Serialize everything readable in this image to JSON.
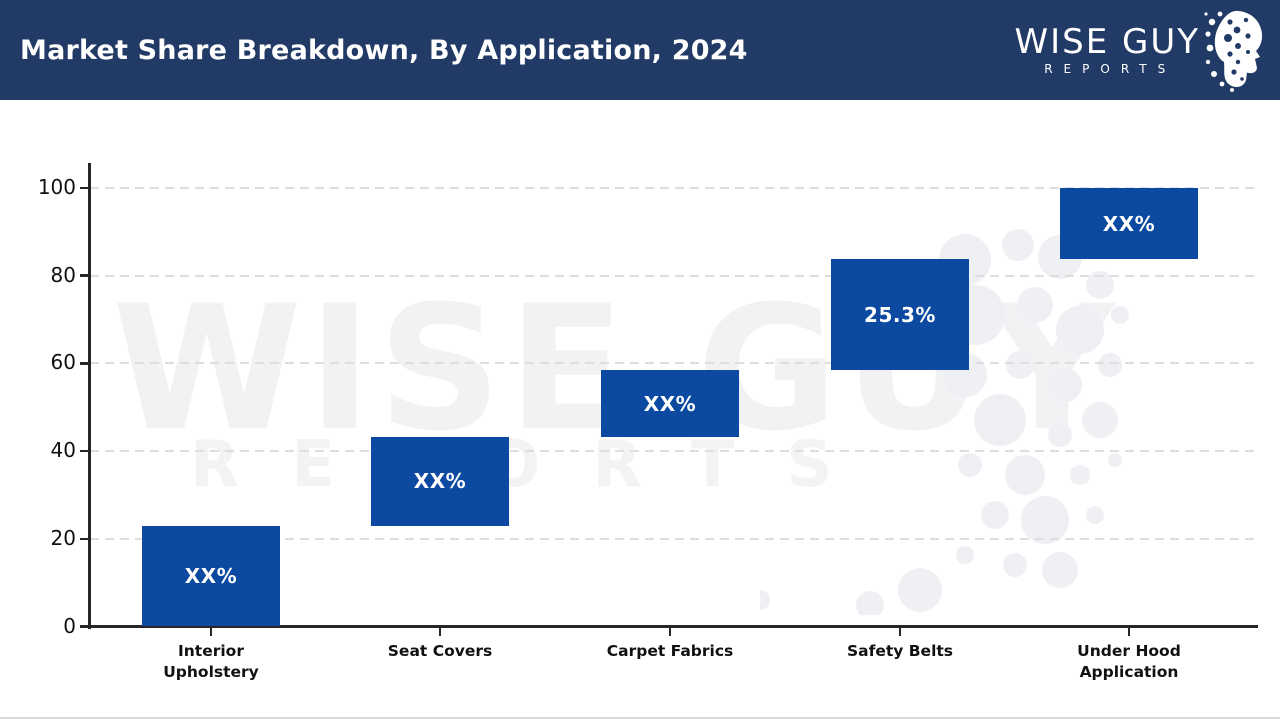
{
  "header": {
    "title": "Market Share Breakdown, By Application, 2024",
    "logo": {
      "line1": "WISE GUY",
      "line2": "REPORTS"
    }
  },
  "watermark": {
    "line1": "WISE GUY",
    "line2": "REPORTS"
  },
  "chart_data": {
    "type": "bar",
    "subtype": "waterfall",
    "title": "Market Share Breakdown, By Application, 2024",
    "categories": [
      "Interior\nUpholstery",
      "Seat Covers",
      "Carpet Fabrics",
      "Safety Belts",
      "Under Hood\nApplication"
    ],
    "segments": [
      {
        "category": "Interior Upholstery",
        "start": 0,
        "end": 23,
        "label": "XX%"
      },
      {
        "category": "Seat Covers",
        "start": 23,
        "end": 43.2,
        "label": "XX%"
      },
      {
        "category": "Carpet Fabrics",
        "start": 43.2,
        "end": 58.5,
        "label": "XX%"
      },
      {
        "category": "Safety Belts",
        "start": 58.5,
        "end": 83.8,
        "label": "25.3%"
      },
      {
        "category": "Under Hood Application",
        "start": 83.8,
        "end": 100,
        "label": "XX%"
      }
    ],
    "yticks": [
      0,
      20,
      40,
      60,
      80,
      100
    ],
    "ylim": [
      0,
      105.6
    ],
    "xlabel": "",
    "ylabel": "",
    "grid": "horizontal-dashed",
    "legend": "none"
  },
  "colors": {
    "header_bg": "#213a66",
    "bar": "#0b4aa0",
    "bar_label": "#ffffff",
    "axis": "#262626",
    "gridline": "#dedede",
    "page_bg": "#ffffff",
    "watermark": "#f2f2f4"
  }
}
